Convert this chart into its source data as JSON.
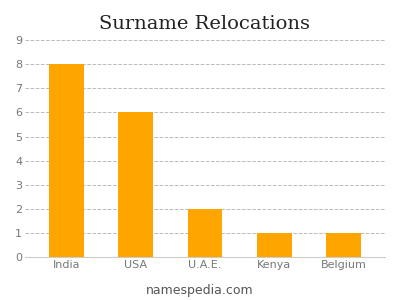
{
  "title": "Surname Relocations",
  "categories": [
    "India",
    "USA",
    "U.A.E.",
    "Kenya",
    "Belgium"
  ],
  "values": [
    8,
    6,
    2,
    1,
    1
  ],
  "bar_color": "#FFA500",
  "background_color": "#ffffff",
  "ylim": [
    0,
    9
  ],
  "yticks": [
    0,
    1,
    2,
    3,
    4,
    5,
    6,
    7,
    8,
    9
  ],
  "grid_color": "#bbbbbb",
  "title_fontsize": 14,
  "tick_fontsize": 8,
  "footer_text": "namespedia.com",
  "footer_fontsize": 9,
  "bar_width": 0.5
}
